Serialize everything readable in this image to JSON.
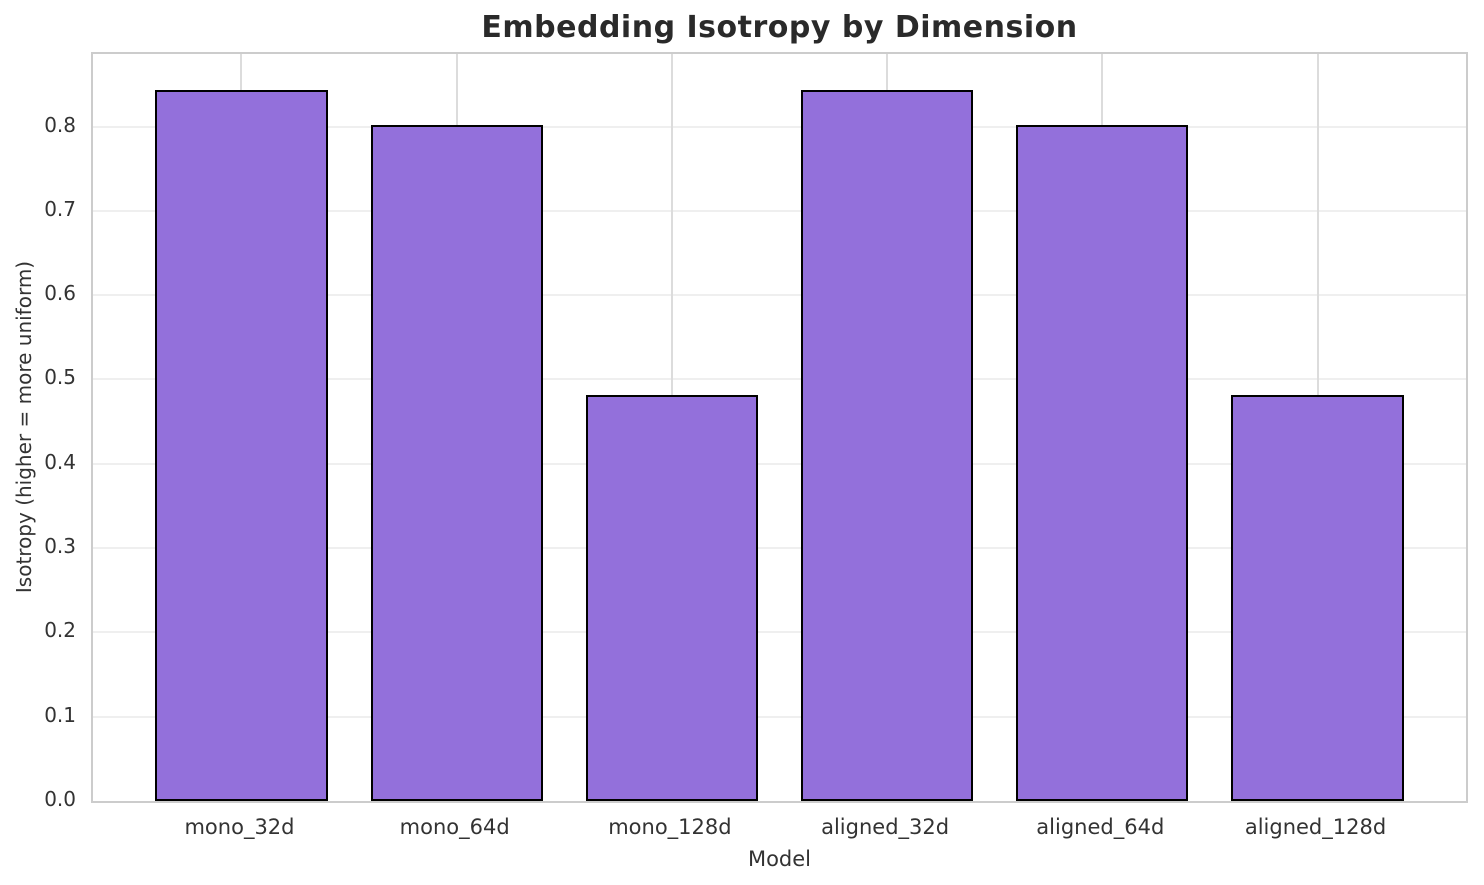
{
  "chart_data": {
    "type": "bar",
    "title": "Embedding Isotropy by Dimension",
    "xlabel": "Model",
    "ylabel": "Isotropy (higher = more uniform)",
    "categories": [
      "mono_32d",
      "mono_64d",
      "mono_128d",
      "aligned_32d",
      "aligned_64d",
      "aligned_128d"
    ],
    "values": [
      0.843,
      0.802,
      0.482,
      0.843,
      0.802,
      0.482
    ],
    "ylim": [
      0,
      0.886
    ],
    "ytick_labels": [
      "0.0",
      "0.1",
      "0.2",
      "0.3",
      "0.4",
      "0.5",
      "0.6",
      "0.7",
      "0.8"
    ],
    "yticks": [
      0.0,
      0.1,
      0.2,
      0.3,
      0.4,
      0.5,
      0.6,
      0.7,
      0.8
    ],
    "grid": true,
    "legend": null,
    "bar_color": "#9370DB",
    "bar_edge_color": "#000000",
    "bar_width_fraction": 0.8
  }
}
